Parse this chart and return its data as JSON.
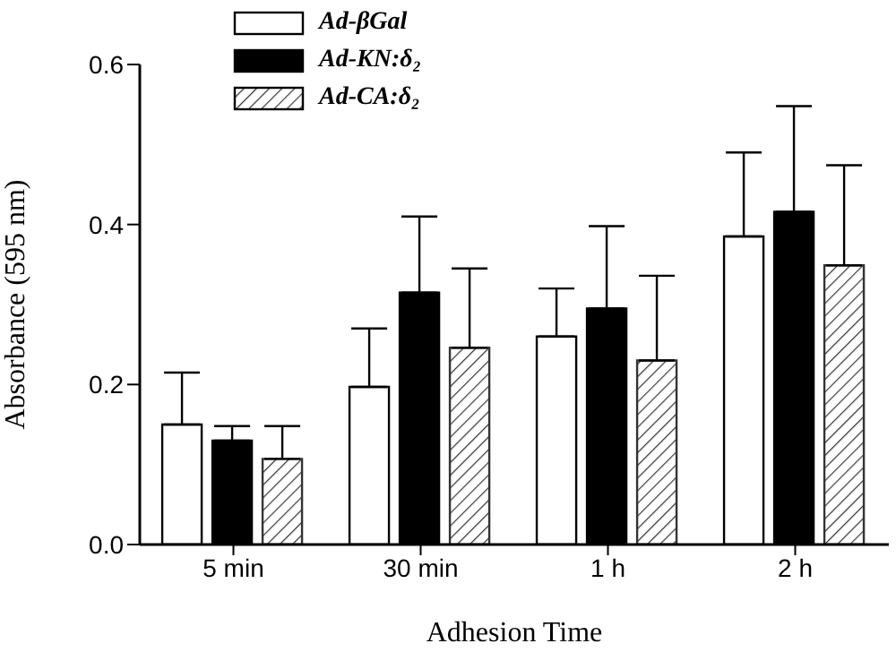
{
  "chart_data": {
    "type": "bar",
    "xlabel": "Adhesion Time",
    "ylabel": "Absorbance (595 nm)",
    "categories": [
      "5 min",
      "30 min",
      "1 h",
      "2 h"
    ],
    "series": [
      {
        "name": "Ad-βGal",
        "color": "#ffffff",
        "values": [
          0.15,
          0.197,
          0.26,
          0.385
        ],
        "errors": [
          [
            0.15,
            0.215
          ],
          [
            0.197,
            0.27
          ],
          [
            0.26,
            0.32
          ],
          [
            0.385,
            0.49
          ]
        ]
      },
      {
        "name": "Ad-KN:δ₂",
        "color": "#000000",
        "values": [
          0.13,
          0.315,
          0.295,
          0.416
        ],
        "errors": [
          [
            0.13,
            0.148
          ],
          [
            0.315,
            0.41
          ],
          [
            0.295,
            0.398
          ],
          [
            0.416,
            0.548
          ]
        ]
      },
      {
        "name": "Ad-CA:δ₂",
        "color": "#333333",
        "values": [
          0.107,
          0.246,
          0.23,
          0.349
        ],
        "errors": [
          [
            0.107,
            0.148
          ],
          [
            0.246,
            0.345
          ],
          [
            0.23,
            0.336
          ],
          [
            0.349,
            0.474
          ]
        ]
      }
    ],
    "ylim": [
      0,
      0.6
    ],
    "yticks": [
      {
        "value": 0,
        "label": "0.0"
      },
      {
        "value": 0.2,
        "label": "0.2"
      },
      {
        "value": 0.4,
        "label": "0.4"
      },
      {
        "value": 0.6,
        "label": "0.6"
      }
    ],
    "grid": false,
    "legend": "top left"
  }
}
